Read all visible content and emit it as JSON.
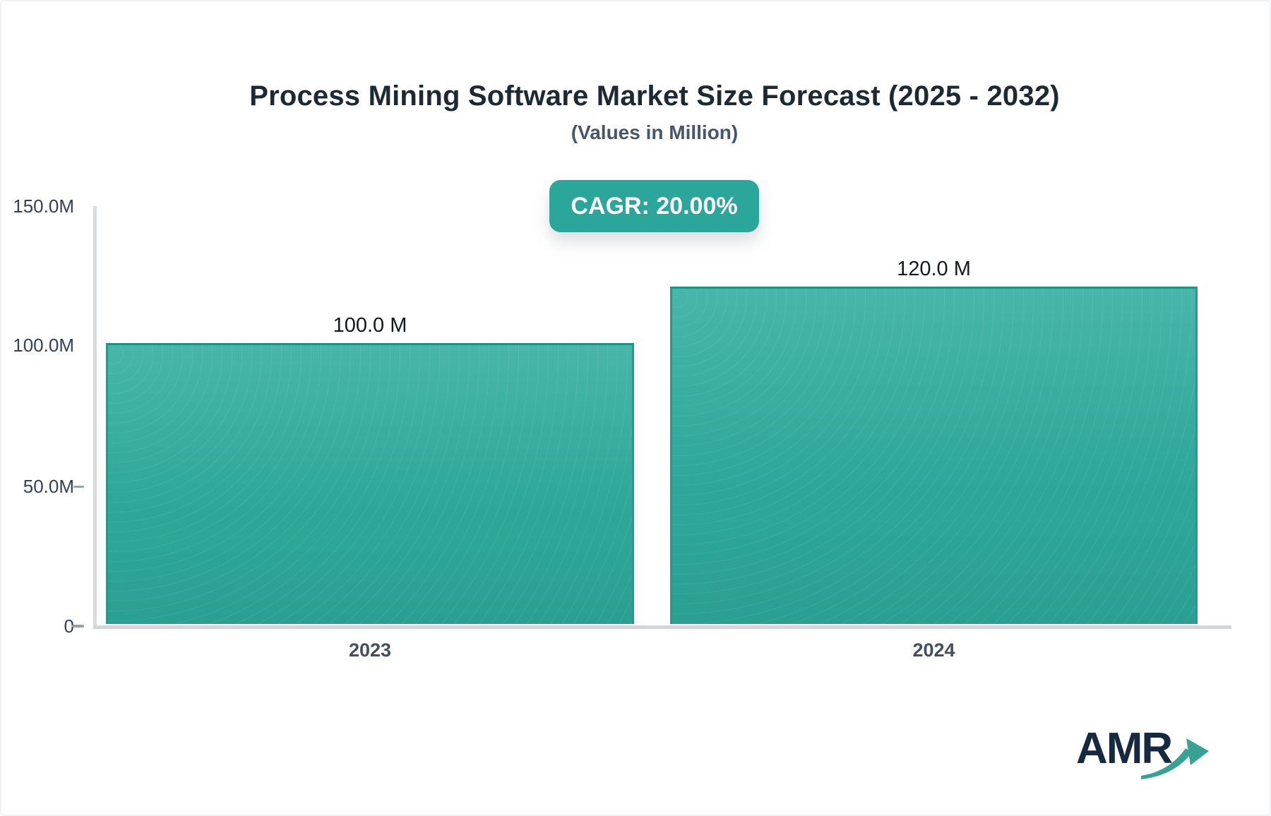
{
  "header": {
    "title": "Process Mining Software Market Size Forecast (2025 - 2032)",
    "subtitle": "(Values in Million)",
    "cagr_badge": "CAGR: 20.00%"
  },
  "y_axis": {
    "tick_labels": [
      "150.0M",
      "100.0M",
      "50.0M",
      "0"
    ],
    "tick_values": [
      150,
      100,
      50,
      0
    ]
  },
  "chart_data": {
    "type": "bar",
    "categories": [
      "2023",
      "2024"
    ],
    "values": [
      100.0,
      120.0
    ],
    "data_labels": [
      "100.0 M",
      "120.0 M"
    ],
    "title": "Process Mining Software Market Size Forecast (2025 - 2032)",
    "subtitle": "(Values in Million)",
    "annotation": "CAGR: 20.00%",
    "xlabel": "",
    "ylabel": "",
    "ylim": [
      0,
      150
    ],
    "ytick_labels": [
      "0",
      "50.0M",
      "100.0M",
      "150.0M"
    ],
    "unit": "Million",
    "grid": false,
    "legend": false,
    "bar_color_top": "#49b6aa",
    "bar_color_bottom": "#2aa093",
    "accent_color": "#2aa79a"
  },
  "logo": {
    "text": "AMR",
    "arrow_icon": "growth-arrow-icon"
  },
  "colors": {
    "accent_teal": "#2aa79a",
    "title_text": "#1c2a33",
    "subtitle_text": "#46566b",
    "axis_line": "#d7dade",
    "tick_label_text": "#32415a",
    "data_label_text": "#12181d",
    "logo_navy": "#152a40",
    "logo_arrow_teal": "#37a294"
  }
}
